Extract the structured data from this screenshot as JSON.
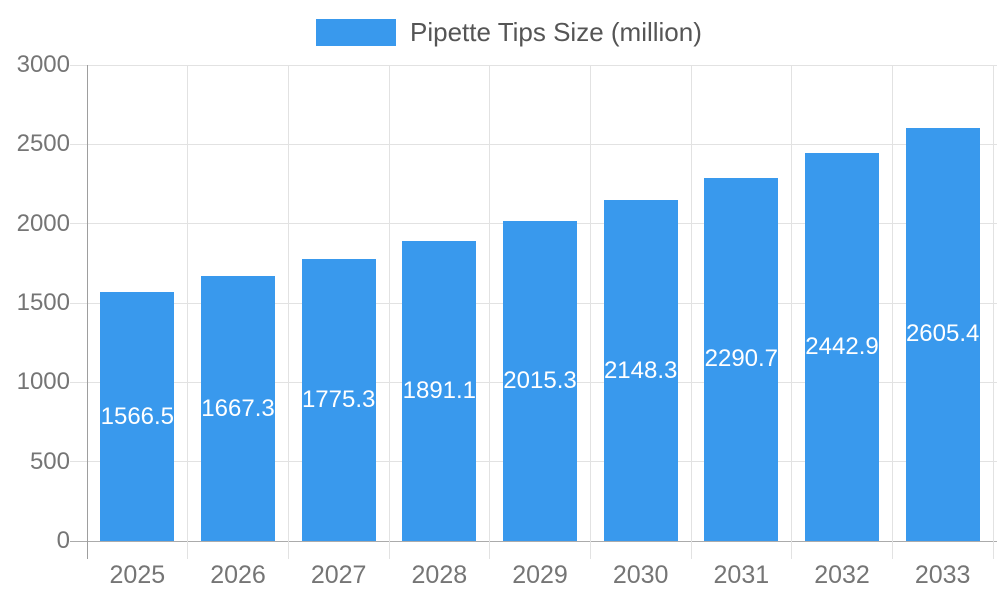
{
  "chart_data": {
    "type": "bar",
    "title": "Pipette Tips Size (million)",
    "series_name": "Pipette Tips Size (million)",
    "categories": [
      "2025",
      "2026",
      "2027",
      "2028",
      "2029",
      "2030",
      "2031",
      "2032",
      "2033"
    ],
    "values": [
      1566.5,
      1667.3,
      1775.3,
      1891.1,
      2015.3,
      2148.3,
      2290.7,
      2442.9,
      2605.4
    ],
    "value_labels": [
      "1566.5",
      "1667.3",
      "1775.3",
      "1891.1",
      "2015.3",
      "2148.3",
      "2290.7",
      "2442.9",
      "2605.4"
    ],
    "xlabel": "",
    "ylabel": "",
    "ylim": [
      0,
      3000
    ],
    "yticks": [
      0,
      500,
      1000,
      1500,
      2000,
      2500,
      3000
    ],
    "grid": true,
    "legend_position": "top-center",
    "colors": {
      "bar": "#3999ED",
      "value_label": "#FFFFFF",
      "axis_tick_label": "#757575",
      "legend_text": "#555555",
      "gridline": "#E2E2E2",
      "axis_line": "#9E9E9E",
      "zero_line": "#ABABAB"
    }
  }
}
